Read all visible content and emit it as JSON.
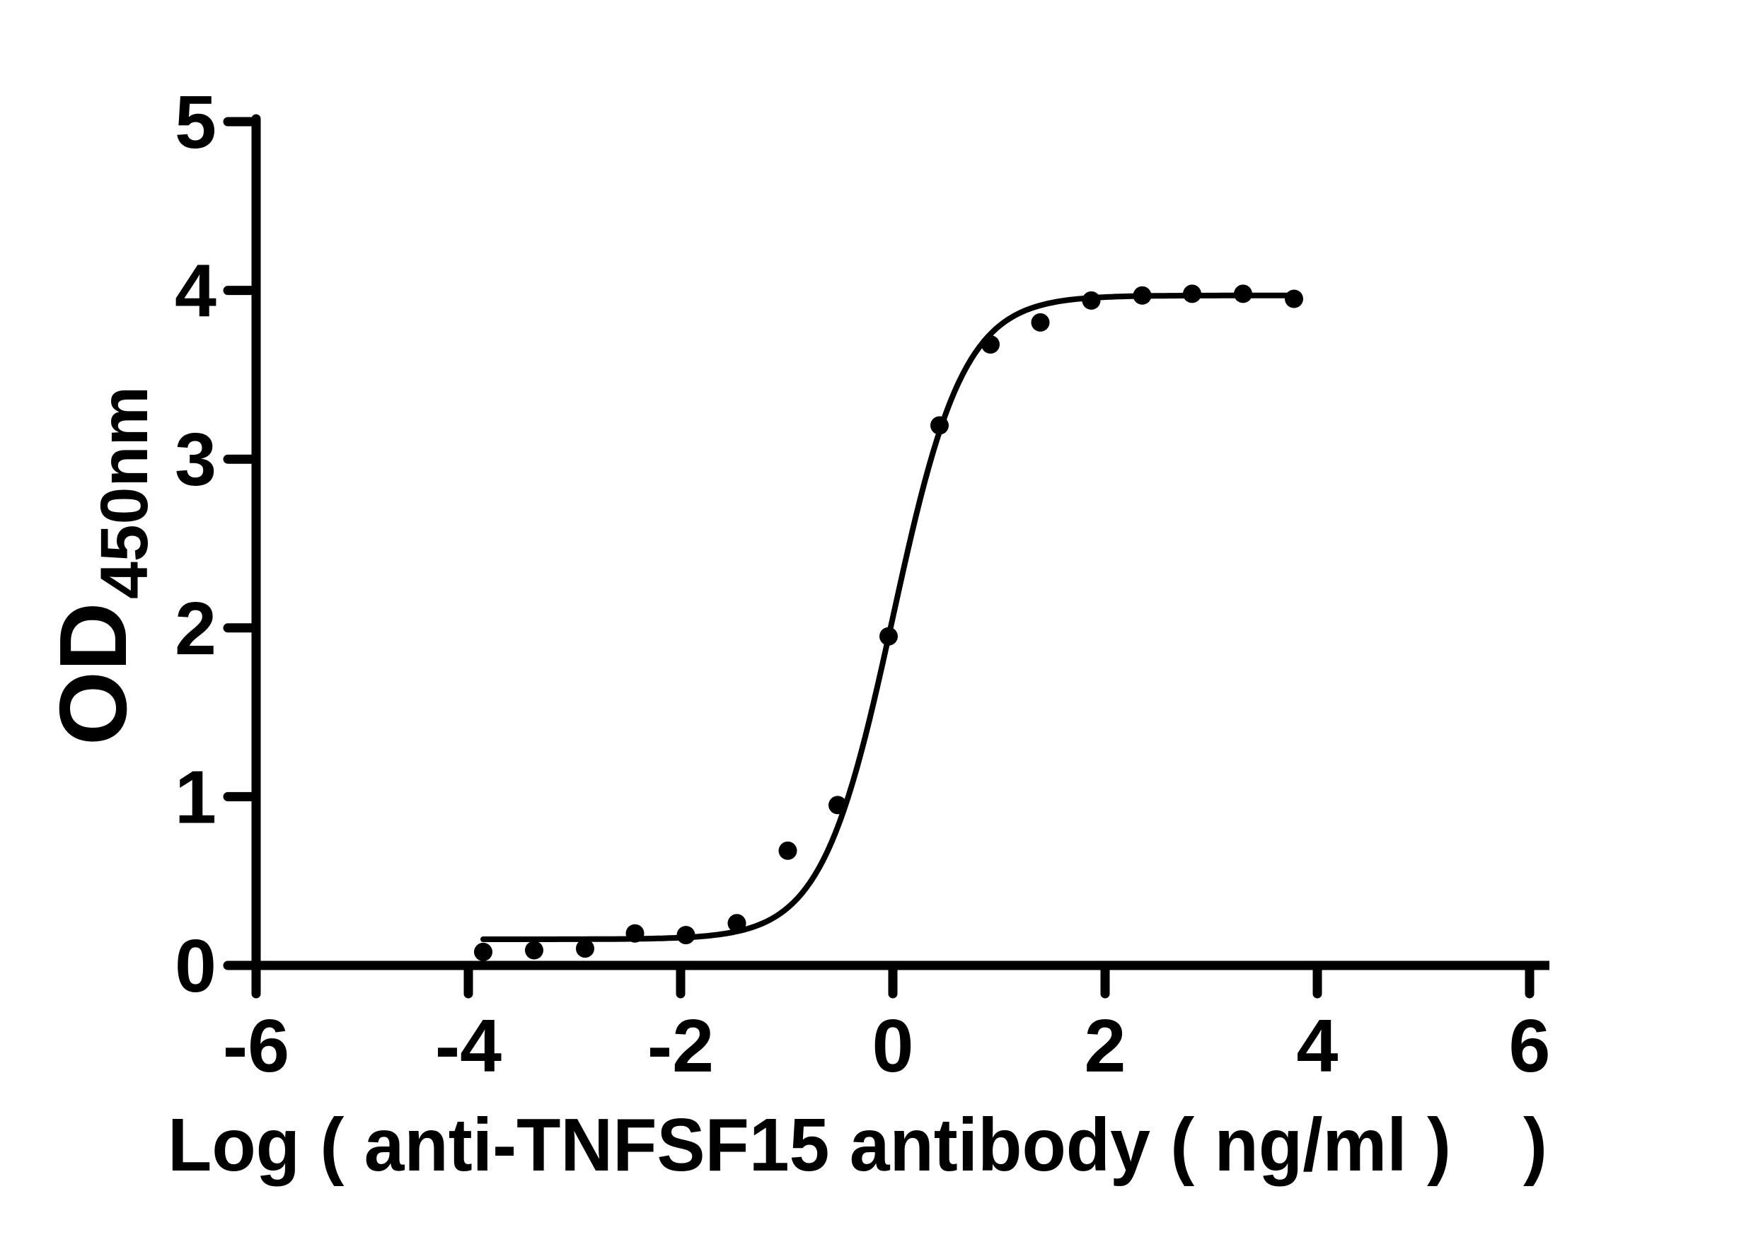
{
  "figure": {
    "background_color": "#ffffff",
    "ink_color": "#000000"
  },
  "chart_data": {
    "type": "scatter",
    "title": "",
    "xlabel": "Log ( anti-TNFSF15 antibody ( ng/ml ) )",
    "ylabel_main": "OD",
    "ylabel_subscript": "450nm",
    "xlim": [
      -6,
      6
    ],
    "ylim": [
      0,
      5
    ],
    "x_ticks": [
      -6,
      -4,
      -2,
      0,
      2,
      4,
      6
    ],
    "y_ticks": [
      0,
      1,
      2,
      3,
      4,
      5
    ],
    "grid": false,
    "legend_position": "none",
    "marker": "filled-circle",
    "marker_color": "#000000",
    "curve_color": "#000000",
    "series": [
      {
        "name": "anti-TNFSF15 antibody",
        "x": [
          -3.86,
          -3.38,
          -2.9,
          -2.43,
          -1.95,
          -1.47,
          -0.99,
          -0.52,
          -0.04,
          0.44,
          0.92,
          1.39,
          1.87,
          2.35,
          2.82,
          3.3,
          3.78
        ],
        "y": [
          0.08,
          0.09,
          0.1,
          0.19,
          0.18,
          0.25,
          0.68,
          0.95,
          1.95,
          3.2,
          3.68,
          3.81,
          3.94,
          3.97,
          3.98,
          3.98,
          3.95
        ]
      }
    ],
    "fit_curve": {
      "model": "four-parameter-logistic",
      "bottom": 0.155,
      "top": 3.97,
      "log_ec50": 0.0,
      "hill_slope": 1.3,
      "x_start": -3.86,
      "x_end": 3.78
    }
  }
}
